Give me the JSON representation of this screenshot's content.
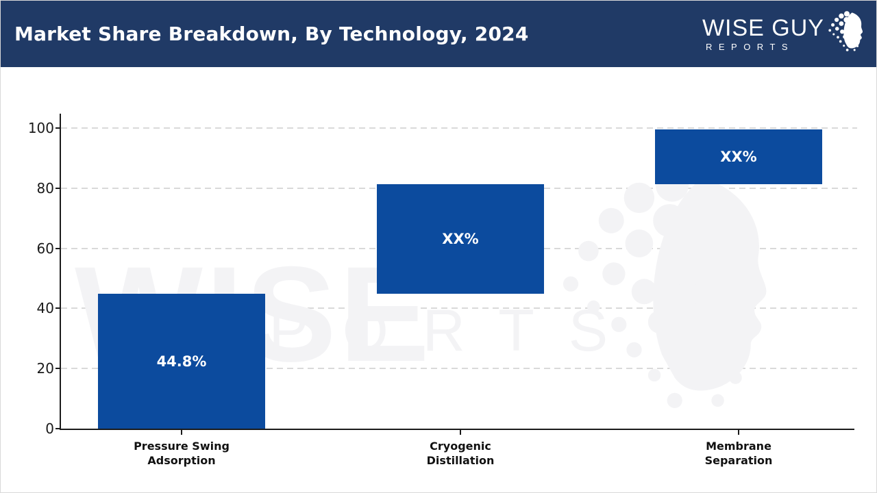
{
  "header": {
    "title": "Market Share Breakdown, By Technology, 2024",
    "background_color": "#203a66",
    "logo": {
      "wordmark": "WISE GUY",
      "subtitle": "REPORTS"
    }
  },
  "watermark": {
    "word1": "WISE",
    "word2": "REPORTS"
  },
  "chart_data": {
    "type": "bar",
    "variant": "floating-segment-waterfall",
    "title": "Market Share Breakdown, By Technology, 2024",
    "categories": [
      "Pressure Swing Adsorption",
      "Cryogenic Distillation",
      "Membrane Separation"
    ],
    "category_lines": [
      [
        "Pressure Swing",
        "Adsorption"
      ],
      [
        "Cryogenic",
        "Distillation"
      ],
      [
        "Membrane",
        "Separation"
      ]
    ],
    "segments": [
      {
        "category": "Pressure Swing Adsorption",
        "start": 0,
        "end": 44.8,
        "label": "44.8%"
      },
      {
        "category": "Cryogenic Distillation",
        "start": 44.8,
        "end": 81.4,
        "label": "XX%"
      },
      {
        "category": "Membrane Separation",
        "start": 81.4,
        "end": 99.5,
        "label": "XX%"
      }
    ],
    "xlabel": "",
    "ylabel": "",
    "ylim": [
      0,
      100
    ],
    "yticks": [
      0,
      20,
      40,
      60,
      80,
      100
    ],
    "grid": "horizontal-dashed",
    "legend": "none",
    "bar_color": "#0c4b9e",
    "bar_label_color": "#ffffff",
    "axis_color": "#1a1a1a",
    "grid_color": "#d9d9d9",
    "watermark_color": "#f3f3f5"
  }
}
